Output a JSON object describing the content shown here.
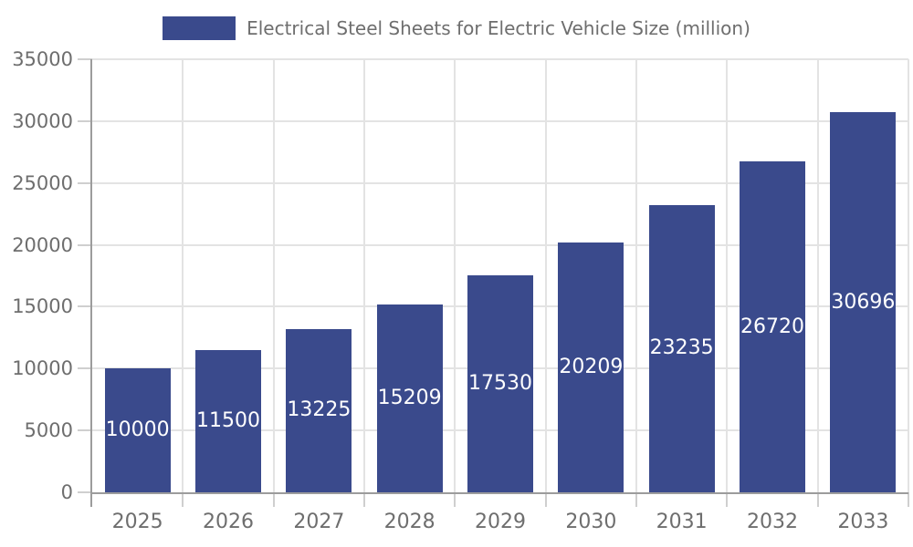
{
  "legend": {
    "label": "Electrical Steel Sheets for Electric Vehicle Size (million)"
  },
  "chart_data": {
    "type": "bar",
    "title": "Electrical Steel Sheets for Electric Vehicle Size (million)",
    "categories": [
      "2025",
      "2026",
      "2027",
      "2028",
      "2029",
      "2030",
      "2031",
      "2032",
      "2033"
    ],
    "values": [
      10000,
      11500,
      13225,
      15209,
      17530,
      20209,
      23235,
      26720,
      30696
    ],
    "series": [
      {
        "name": "Electrical Steel Sheets for Electric Vehicle Size (million)",
        "values": [
          10000,
          11500,
          13225,
          15209,
          17530,
          20209,
          23235,
          26720,
          30696
        ]
      }
    ],
    "xlabel": "",
    "ylabel": "",
    "ylim": [
      0,
      35000
    ],
    "yticks": [
      0,
      5000,
      10000,
      15000,
      20000,
      25000,
      30000,
      35000
    ],
    "grid": true,
    "legend_position": "top-center",
    "value_labels_position": "inside-center",
    "colors": {
      "bar": "#3A4A8C",
      "bar_label": "#FFFFFF",
      "axis_text": "#6E6E6E",
      "legend_text": "#6E6E6E",
      "grid_line": "#E3E3E3",
      "tick_line": "#CFCFCF",
      "axis_line": "#9C9C9C",
      "background": "#FFFFFF"
    }
  }
}
